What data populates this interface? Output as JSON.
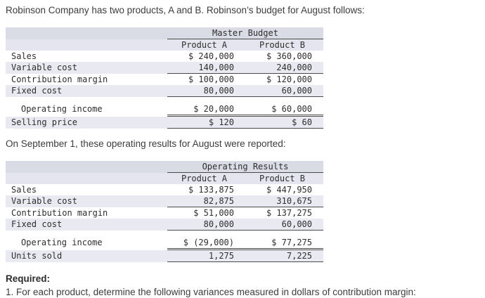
{
  "intro_text": "Robinson Company has two products, A and B. Robinson’s budget for August follows:",
  "results_intro_text": "On September 1, these operating results for August were reported:",
  "required": {
    "heading": "Required:",
    "item1": "1. For each product, determine the following variances measured in dollars of contribution margin:"
  },
  "tables": [
    {
      "title": "Master Budget",
      "columns": [
        "Product A",
        "Product B"
      ],
      "rows": [
        {
          "label": "Sales",
          "a": "$ 240,000",
          "b": "$ 360,000",
          "indent": false,
          "underline": "none",
          "gap_above": false
        },
        {
          "label": "Variable cost",
          "a": "140,000",
          "b": "240,000",
          "indent": false,
          "underline": "single",
          "gap_above": false
        },
        {
          "label": "Contribution margin",
          "a": "$ 100,000",
          "b": "$ 120,000",
          "indent": false,
          "underline": "none",
          "gap_above": false
        },
        {
          "label": "Fixed cost",
          "a": "80,000",
          "b": "60,000",
          "indent": false,
          "underline": "single",
          "gap_above": false
        },
        {
          "label": "Operating income",
          "a": "$ 20,000",
          "b": "$ 60,000",
          "indent": true,
          "underline": "double",
          "gap_above": true
        },
        {
          "label": "Selling price",
          "a": "$ 120",
          "b": "$ 60",
          "indent": false,
          "underline": "single",
          "gap_above": false
        }
      ]
    },
    {
      "title": "Operating Results",
      "columns": [
        "Product A",
        "Product B"
      ],
      "rows": [
        {
          "label": "Sales",
          "a": "$ 133,875",
          "b": "$ 447,950",
          "indent": false,
          "underline": "none",
          "gap_above": false
        },
        {
          "label": "Variable cost",
          "a": "82,875",
          "b": "310,675",
          "indent": false,
          "underline": "single",
          "gap_above": false
        },
        {
          "label": "Contribution margin",
          "a": "$ 51,000",
          "b": "$ 137,275",
          "indent": false,
          "underline": "none",
          "gap_above": false
        },
        {
          "label": "Fixed cost",
          "a": "80,000",
          "b": "60,000",
          "indent": false,
          "underline": "single",
          "gap_above": false
        },
        {
          "label": "Operating income",
          "a": "$ (29,000)",
          "b": "$ 77,275",
          "indent": true,
          "underline": "double",
          "gap_above": true
        },
        {
          "label": "Units sold",
          "a": "1,275",
          "b": "7,225",
          "indent": false,
          "underline": "single",
          "gap_above": false
        }
      ]
    }
  ],
  "colors": {
    "stripe": "#e9e9f1",
    "title_row": "#d9dbe5",
    "header_row": "#e4e5ee",
    "rule": "#4a4a4a"
  }
}
